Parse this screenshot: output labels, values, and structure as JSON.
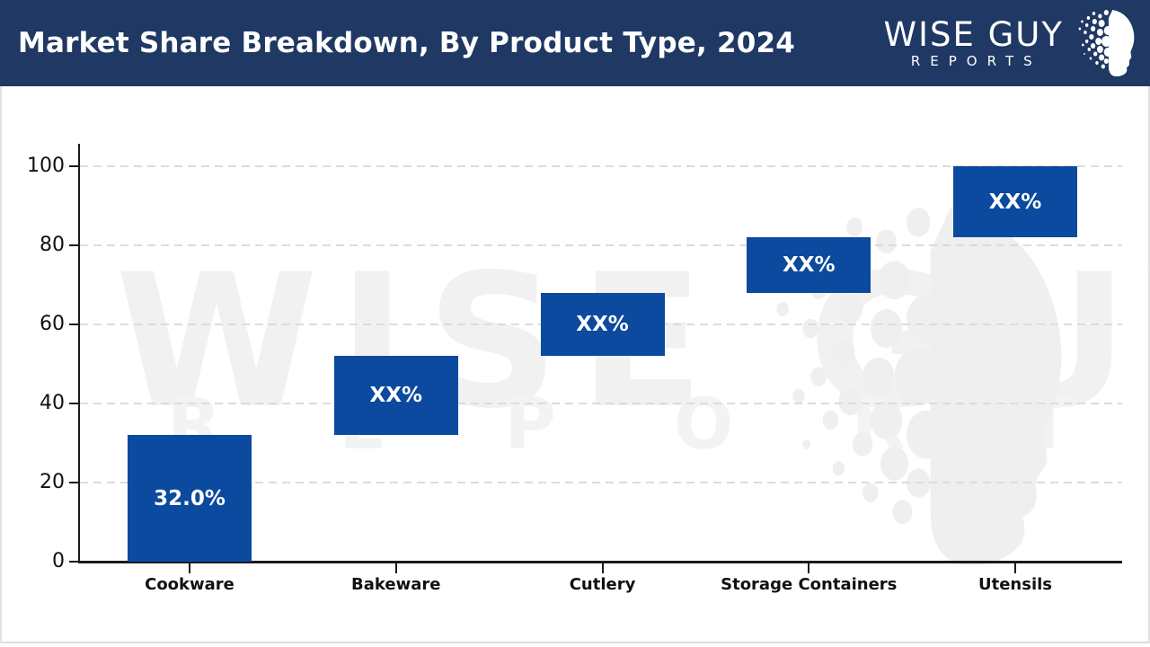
{
  "header": {
    "title": "Market Share Breakdown, By Product Type, 2024",
    "logo": {
      "line1": "WISE GUY",
      "line2": "REPORTS"
    }
  },
  "watermark": {
    "line1": "WISE GUY",
    "line2": "R E P O R T S"
  },
  "colors": {
    "header_bg": "#1f3864",
    "bar_blue": "#0b4a9e",
    "gridline": "#dcdcdc",
    "axis": "#1a1a1a",
    "bar_label_text": "#ffffff",
    "watermark": "#f1f1f1"
  },
  "chart_data": {
    "type": "bar",
    "subtype": "waterfall",
    "title": "Market Share Breakdown, By Product Type, 2024",
    "categories": [
      "Cookware",
      "Bakeware",
      "Cutlery",
      "Storage Containers",
      "Utensils"
    ],
    "segments": [
      {
        "category": "Cookware",
        "start": 0,
        "end": 32,
        "value_label": "32.0%"
      },
      {
        "category": "Bakeware",
        "start": 32,
        "end": 52,
        "value_label": "XX%"
      },
      {
        "category": "Cutlery",
        "start": 52,
        "end": 68,
        "value_label": "XX%"
      },
      {
        "category": "Storage Containers",
        "start": 68,
        "end": 82,
        "value_label": "XX%"
      },
      {
        "category": "Utensils",
        "start": 82,
        "end": 100,
        "value_label": "XX%"
      }
    ],
    "yticks": [
      0,
      20,
      40,
      60,
      80,
      100
    ],
    "ylim": [
      0,
      105
    ],
    "xlabel": "",
    "ylabel": "",
    "grid": "horizontal-dashed",
    "legend": "none"
  }
}
